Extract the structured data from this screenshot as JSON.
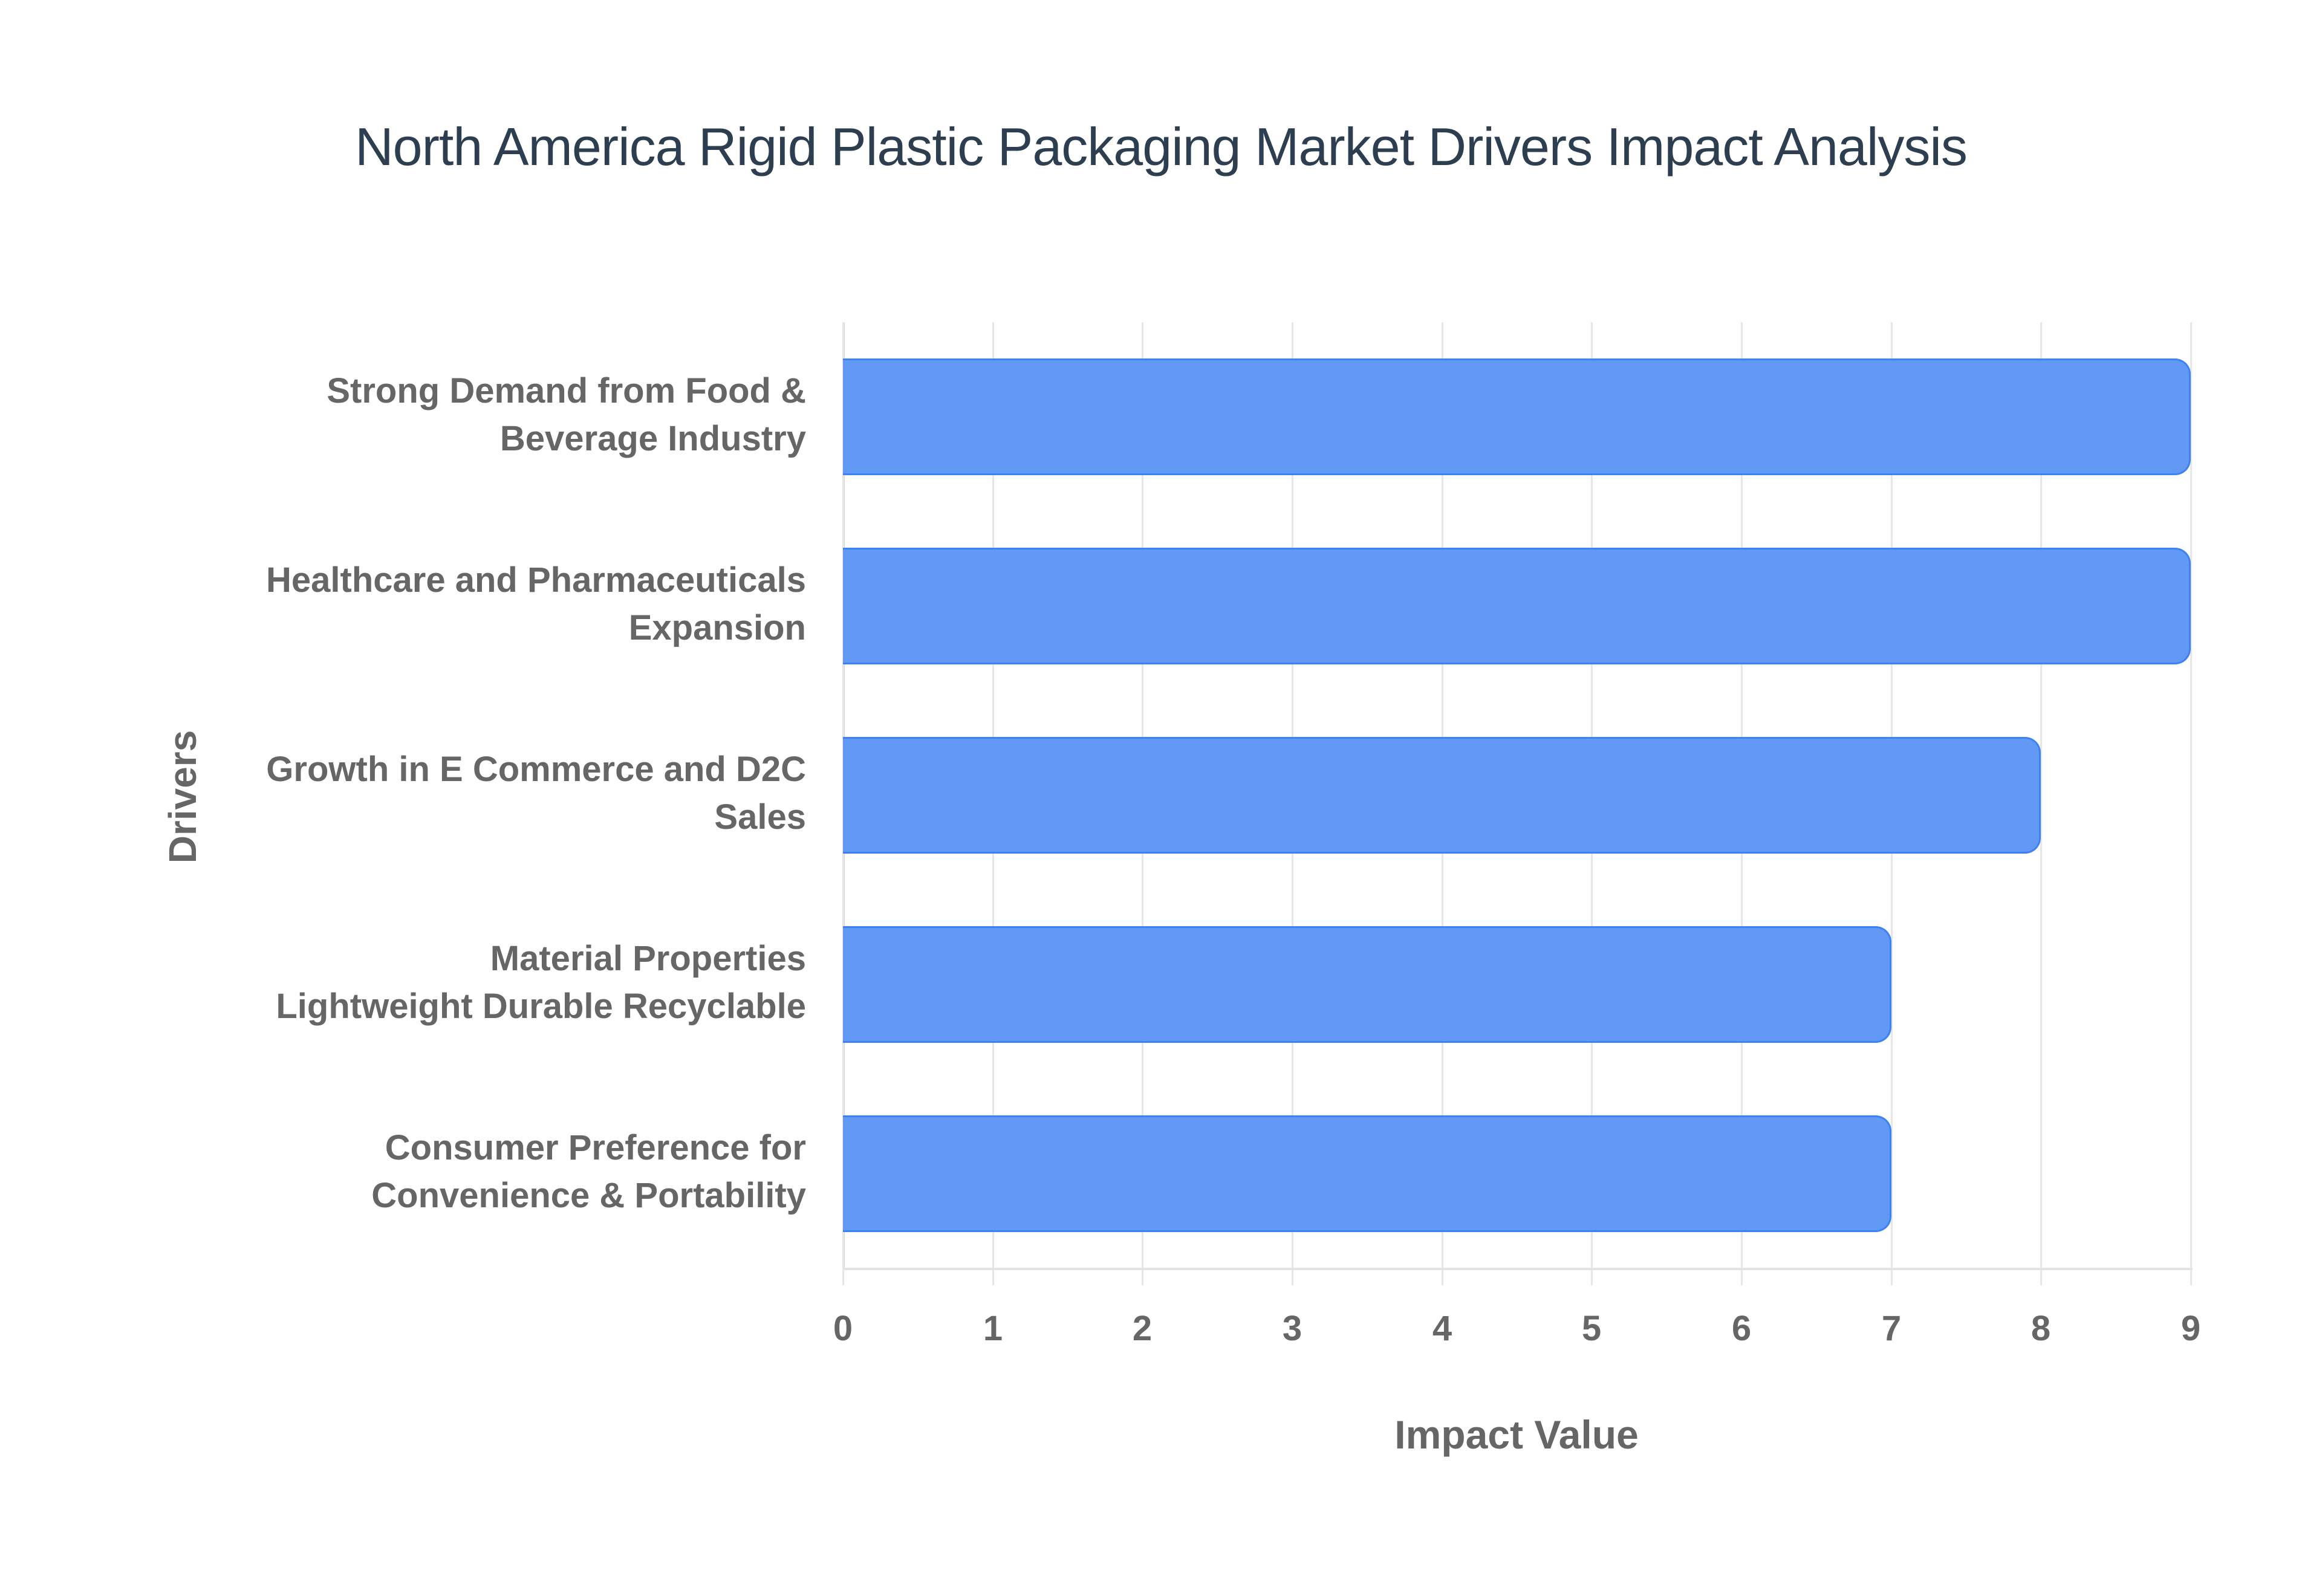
{
  "title": "North America Rigid Plastic Packaging Market Drivers Impact Analysis",
  "colors": {
    "bar_fill": "#6199f5",
    "bar_border": "#3b82f6",
    "title": "#2c3e50",
    "axis_text": "#666666",
    "grid": "#e6e6e6"
  },
  "x_axis": {
    "label": "Impact Value",
    "ticks": [
      "0",
      "1",
      "2",
      "3",
      "4",
      "5",
      "6",
      "7",
      "8",
      "9"
    ]
  },
  "y_axis": {
    "label": "Drivers"
  },
  "categories": [
    {
      "line1": "Strong Demand from Food &",
      "line2": "Beverage Industry",
      "value": 9
    },
    {
      "line1": "Healthcare and Pharmaceuticals",
      "line2": "Expansion",
      "value": 9
    },
    {
      "line1": "Growth in E Commerce and D2C",
      "line2": "Sales",
      "value": 8
    },
    {
      "line1": "Material Properties",
      "line2": "Lightweight Durable Recyclable",
      "value": 7
    },
    {
      "line1": "Consumer Preference for",
      "line2": "Convenience & Portability",
      "value": 7
    }
  ],
  "chart_data": {
    "type": "bar",
    "orientation": "horizontal",
    "title": "North America Rigid Plastic Packaging Market Drivers Impact Analysis",
    "categories": [
      "Strong Demand from Food & Beverage Industry",
      "Healthcare and Pharmaceuticals Expansion",
      "Growth in E Commerce and D2C Sales",
      "Material Properties Lightweight Durable Recyclable",
      "Consumer Preference for Convenience & Portability"
    ],
    "values": [
      9,
      9,
      8,
      7,
      7
    ],
    "xlabel": "Impact Value",
    "ylabel": "Drivers",
    "xlim": [
      0,
      9
    ],
    "xticks": [
      0,
      1,
      2,
      3,
      4,
      5,
      6,
      7,
      8,
      9
    ],
    "grid": true,
    "legend": false
  }
}
